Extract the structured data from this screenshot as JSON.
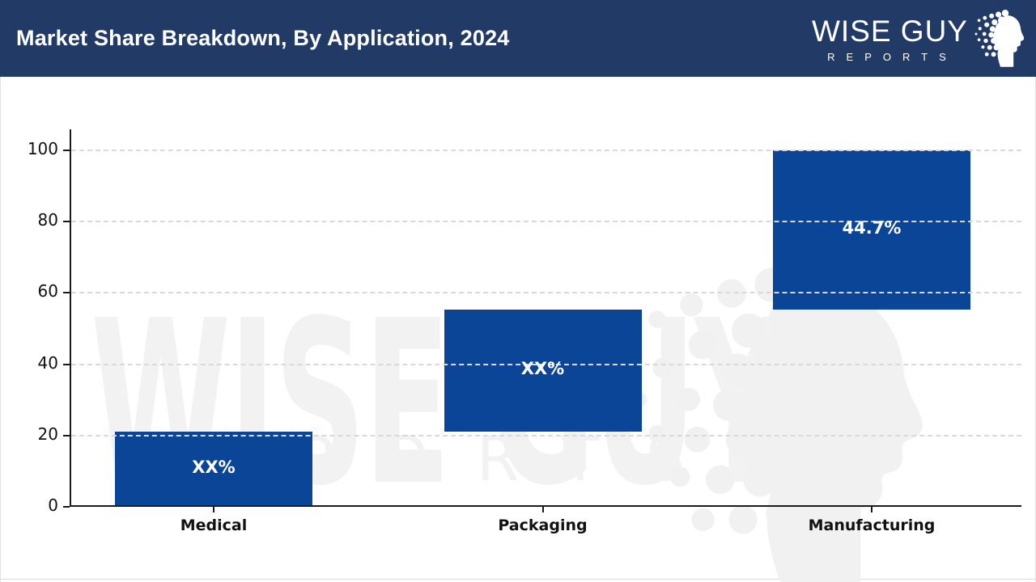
{
  "header": {
    "title": "Market Share Breakdown, By Application, 2024",
    "logo": {
      "line1": "WISE GUY",
      "line2": "REPORTS"
    }
  },
  "watermark": {
    "line1": "WISE GUY",
    "line2": "REPORTS"
  },
  "chart_data": {
    "type": "bar",
    "variant": "floating-stacked-segments",
    "title": "Market Share Breakdown, By Application, 2024",
    "categories": [
      "Medical",
      "Packaging",
      "Manufacturing"
    ],
    "segments": [
      {
        "category": "Medical",
        "from": 0,
        "to": 21,
        "label": "XX%"
      },
      {
        "category": "Packaging",
        "from": 21,
        "to": 55.3,
        "label": "XX%"
      },
      {
        "category": "Manufacturing",
        "from": 55.3,
        "to": 100,
        "label": "44.7%"
      }
    ],
    "xlabel": "",
    "ylabel": "",
    "ylim": [
      0,
      100
    ],
    "yticks": [
      0,
      20,
      40,
      60,
      80,
      100
    ],
    "grid": "horizontal-dashed",
    "grid_on_top_of_bars": true,
    "legend": "none",
    "colors": {
      "bar": "#0b4598",
      "grid": "#d9d9d9",
      "axis": "#1a1a1a",
      "bar_label_text": "#ffffff",
      "tick_text": "#111111",
      "header_bg": "#213a66",
      "header_text": "#ffffff",
      "watermark": "#f2f2f3",
      "background": "#ffffff"
    }
  }
}
